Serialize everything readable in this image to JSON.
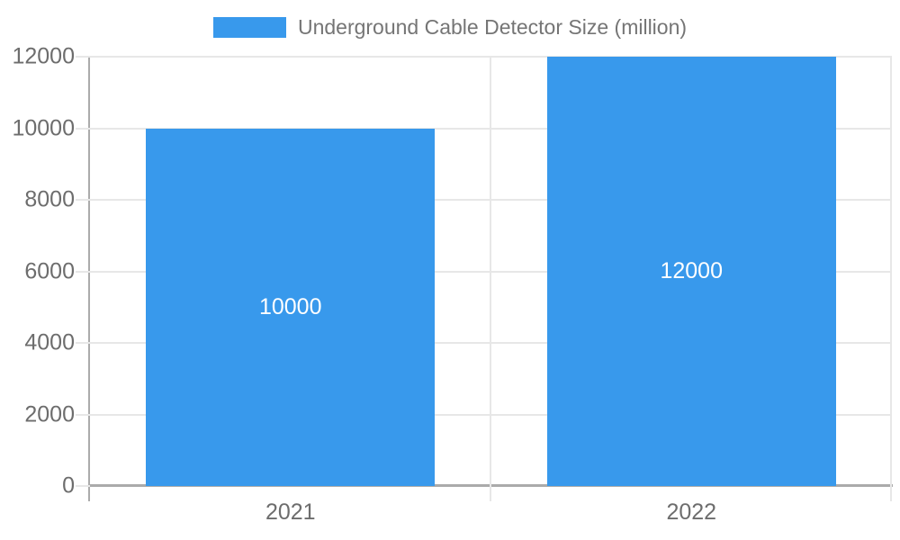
{
  "legend": {
    "label": "Underground Cable Detector Size (million)"
  },
  "colors": {
    "bar": "#3899EC",
    "grid": "#E7E7E7",
    "axis": "#ABABAB",
    "tick_text": "#6D6D6D",
    "value_text": "#FFFFFF",
    "legend_text": "#757575",
    "background": "#FFFFFF"
  },
  "chart_data": {
    "type": "bar",
    "categories": [
      "2021",
      "2022"
    ],
    "series": [
      {
        "name": "Underground Cable Detector Size (million)",
        "values": [
          10000,
          12000
        ]
      }
    ],
    "value_labels": [
      "10000",
      "12000"
    ],
    "title": "",
    "xlabel": "",
    "ylabel": "",
    "ylim": [
      0,
      12000
    ],
    "yticks": [
      0,
      2000,
      4000,
      6000,
      8000,
      10000,
      12000
    ],
    "grid": true,
    "legend_position": "top"
  }
}
